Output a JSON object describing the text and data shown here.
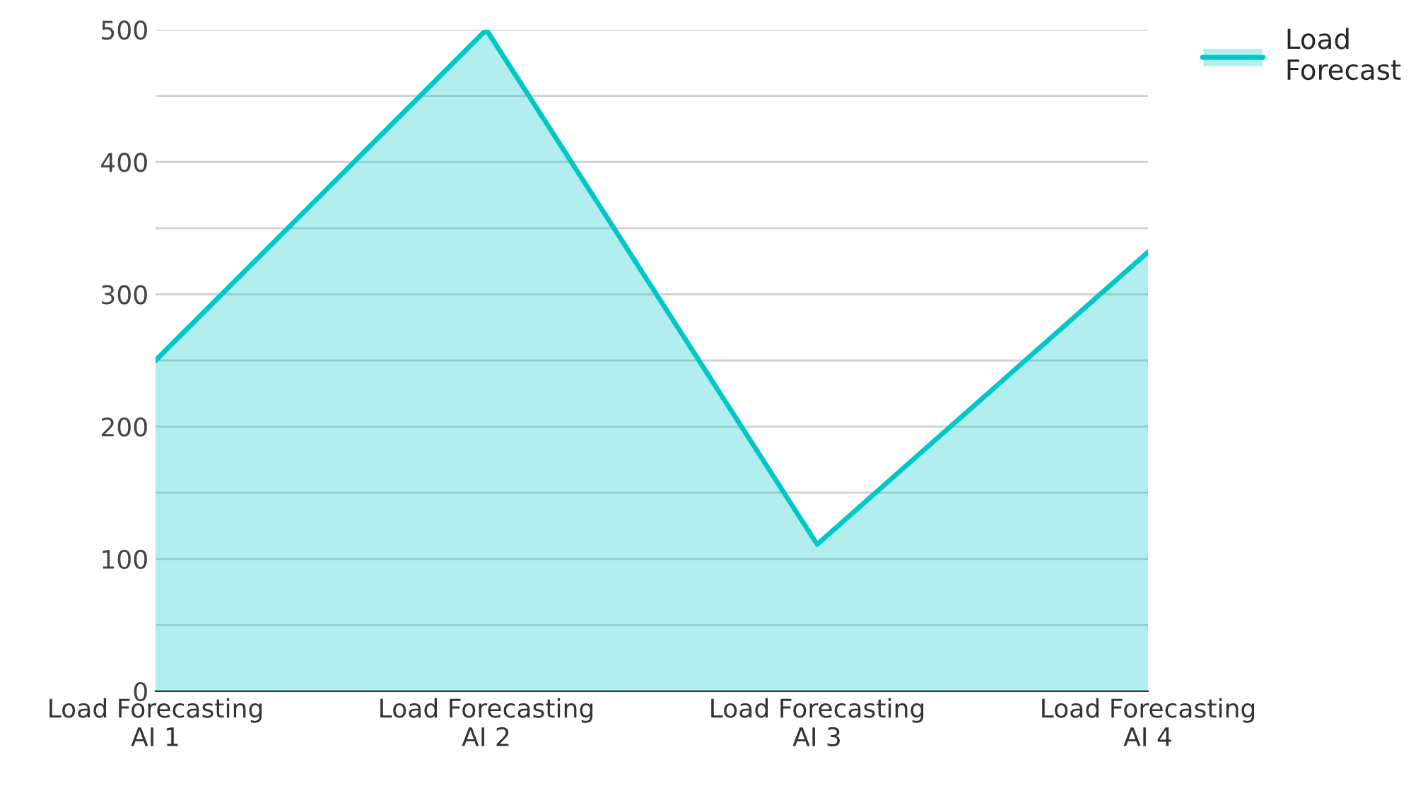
{
  "chart_data": {
    "type": "area",
    "categories": [
      "Load Forecasting\nAI 1",
      "Load Forecasting\nAI 2",
      "Load Forecasting\nAI 3",
      "Load Forecasting\nAI 4"
    ],
    "series": [
      {
        "name": "Load\nForecast",
        "color": "#00c8c8",
        "values": [
          250,
          500,
          111,
          332
        ]
      }
    ],
    "ylim": [
      0,
      500
    ],
    "yticks": [
      0,
      {
        "value": 50,
        "label": null
      },
      100,
      {
        "value": 150,
        "label": null
      },
      200,
      {
        "value": 250,
        "label": null
      },
      300,
      {
        "value": 350,
        "label": null
      },
      400,
      {
        "value": 450,
        "label": null
      },
      500
    ],
    "grid": "y",
    "legend": "top right"
  }
}
